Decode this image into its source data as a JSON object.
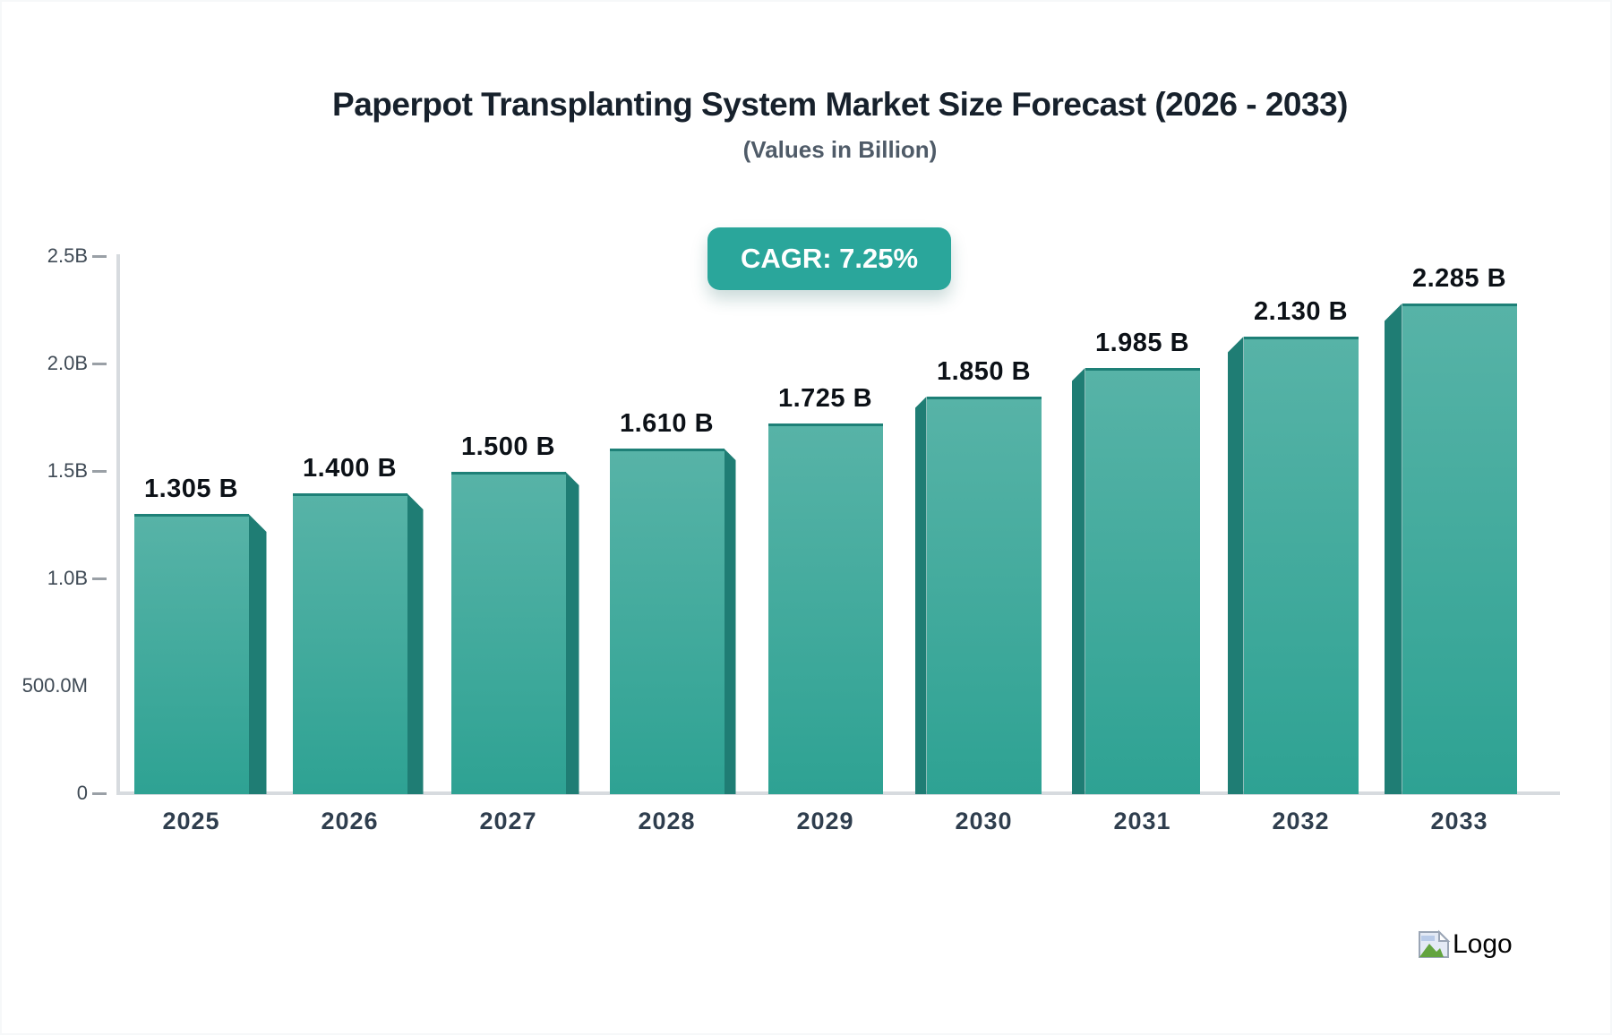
{
  "badge": {
    "label": "CAGR: 7.25%",
    "bg_color": "#2aa69b",
    "text_color": "#ffffff"
  },
  "logo": {
    "alt_text": "Logo",
    "icon": "broken-image-icon"
  },
  "chart_data": {
    "type": "bar",
    "title": "Paperpot Transplanting System Market Size Forecast (2026 - 2033)",
    "subtitle": "(Values in Billion)",
    "categories": [
      "2025",
      "2026",
      "2027",
      "2028",
      "2029",
      "2030",
      "2031",
      "2032",
      "2033"
    ],
    "values": [
      1.305,
      1.4,
      1.5,
      1.61,
      1.725,
      1.85,
      1.985,
      2.13,
      2.285
    ],
    "value_labels": [
      "1.305 B",
      "1.400 B",
      "1.500 B",
      "1.610 B",
      "1.725 B",
      "1.850 B",
      "1.985 B",
      "2.130 B",
      "2.285 B"
    ],
    "xlabel": "",
    "ylabel": "",
    "ylim": [
      0,
      2.5
    ],
    "yticks": [
      {
        "label": "0",
        "value": 0,
        "dash": true
      },
      {
        "label": "500.0M",
        "value": 0.5,
        "dash": false
      },
      {
        "label": "1.0B",
        "value": 1.0,
        "dash": true
      },
      {
        "label": "1.5B",
        "value": 1.5,
        "dash": true
      },
      {
        "label": "2.0B",
        "value": 2.0,
        "dash": true
      },
      {
        "label": "2.5B",
        "value": 2.5,
        "dash": true
      }
    ],
    "grid": false,
    "legend": false,
    "bar_style": "3d-beveled-toward-center",
    "colors": {
      "bar_face_top": "#57b3a7",
      "bar_face_bottom": "#2ea293",
      "bar_top_edge": "#1e8077",
      "bar_side": "#1f7d74",
      "axis_line": "#d7dbdf",
      "tick_dash": "#9aa0a6",
      "tick_text": "#3f4a55",
      "category_text": "#2f3e4e",
      "value_text": "#0c1117"
    }
  }
}
